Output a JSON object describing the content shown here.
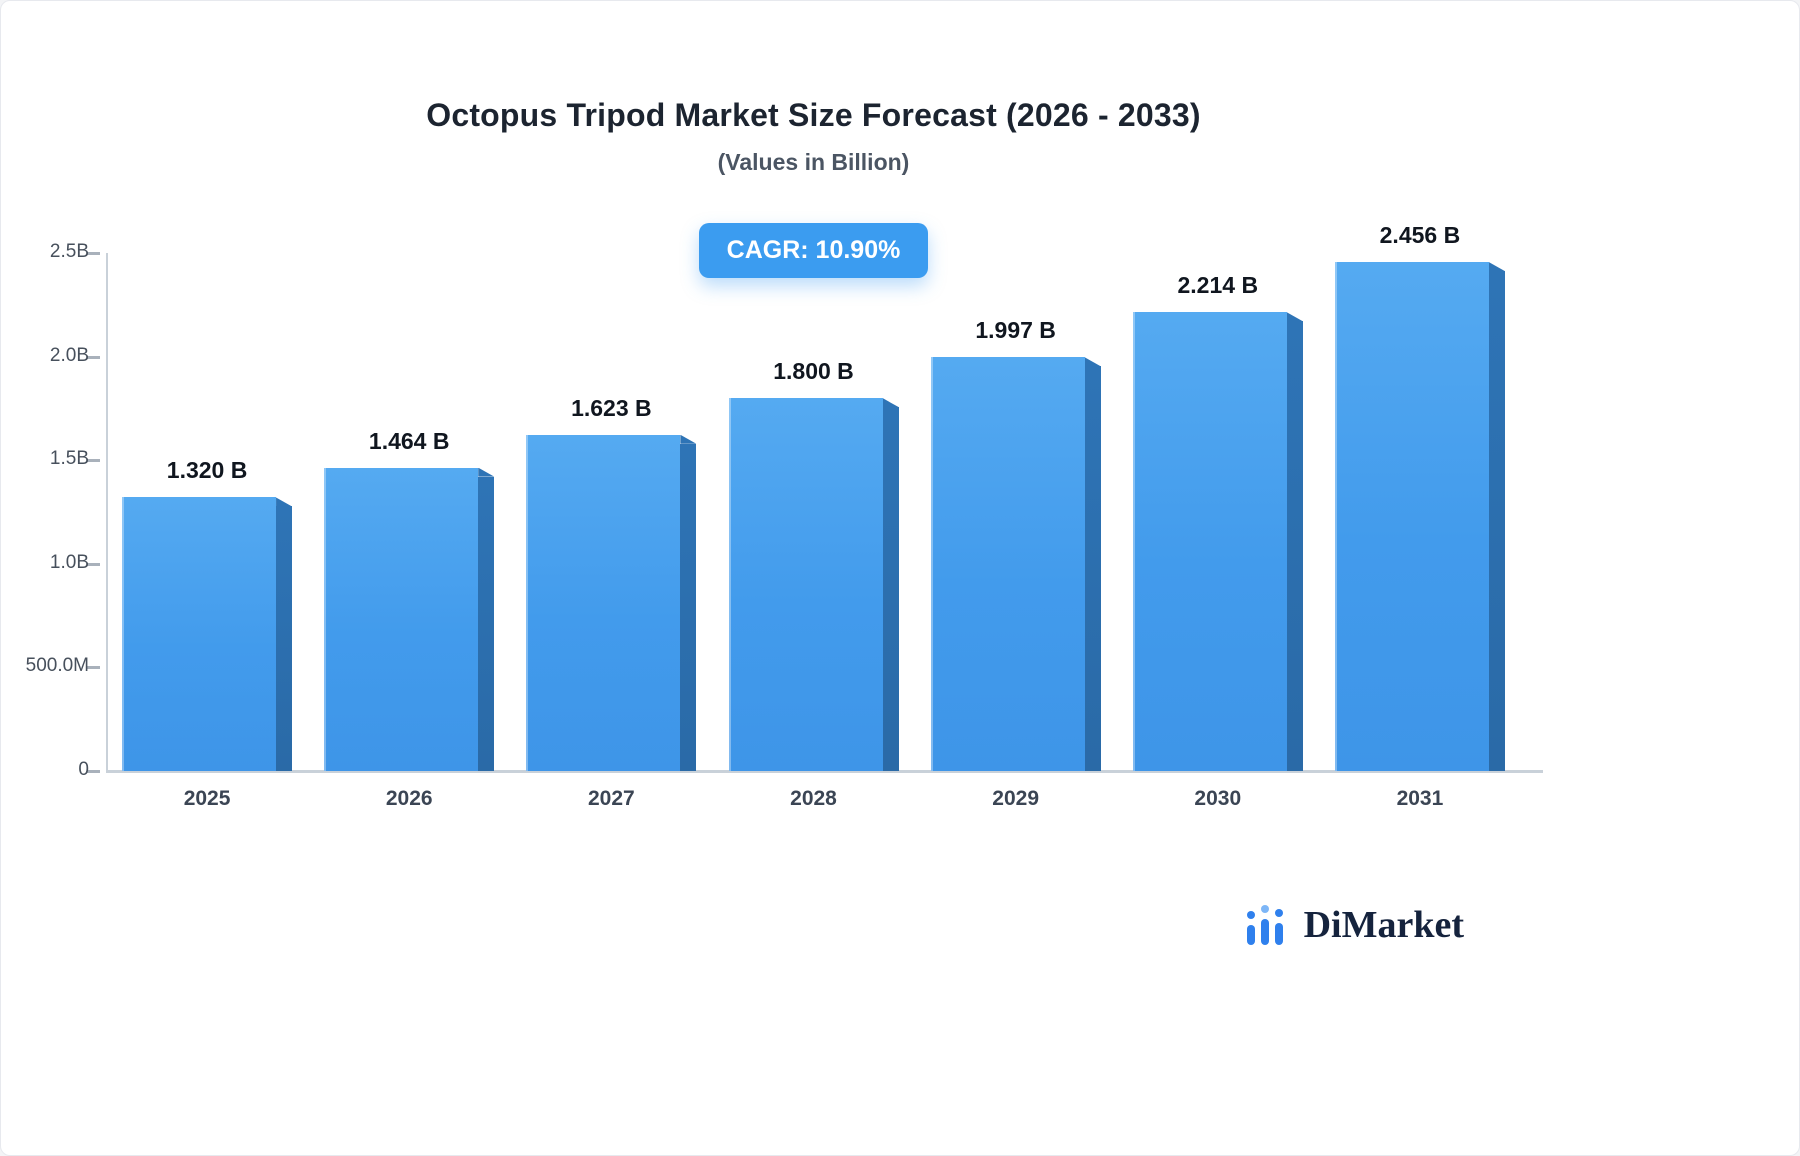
{
  "title": "Octopus Tripod Market Size Forecast (2026 - 2033)",
  "subtitle": "(Values in Billion)",
  "cagr_label": "CAGR: 10.90%",
  "logo": {
    "text": "DiMarket"
  },
  "chart_data": {
    "type": "bar",
    "title": "Octopus Tripod Market Size Forecast (2026 - 2033)",
    "subtitle": "(Values in Billion)",
    "unit": "Billion USD",
    "cagr": "10.90%",
    "categories": [
      "2025",
      "2026",
      "2027",
      "2028",
      "2029",
      "2030",
      "2031"
    ],
    "values": [
      1.32,
      1.464,
      1.623,
      1.8,
      1.997,
      2.214,
      2.456
    ],
    "value_labels": [
      "1.320 B",
      "1.464 B",
      "1.623 B",
      "1.800 B",
      "1.997 B",
      "2.214 B",
      "2.456 B"
    ],
    "xlabel": "",
    "ylabel": "",
    "ylim": [
      0,
      2.5
    ],
    "yticks": [
      {
        "value": 0,
        "label": "0"
      },
      {
        "value": 0.5,
        "label": "500.0M"
      },
      {
        "value": 1.0,
        "label": "1.0B"
      },
      {
        "value": 1.5,
        "label": "1.5B"
      },
      {
        "value": 2.0,
        "label": "2.0B"
      },
      {
        "value": 2.5,
        "label": "2.5B"
      }
    ],
    "grid": false,
    "legend": false,
    "bar_color": "#429bec",
    "bar_side_color": "#2a6aa7",
    "accent_color": "#3b9cf0"
  }
}
